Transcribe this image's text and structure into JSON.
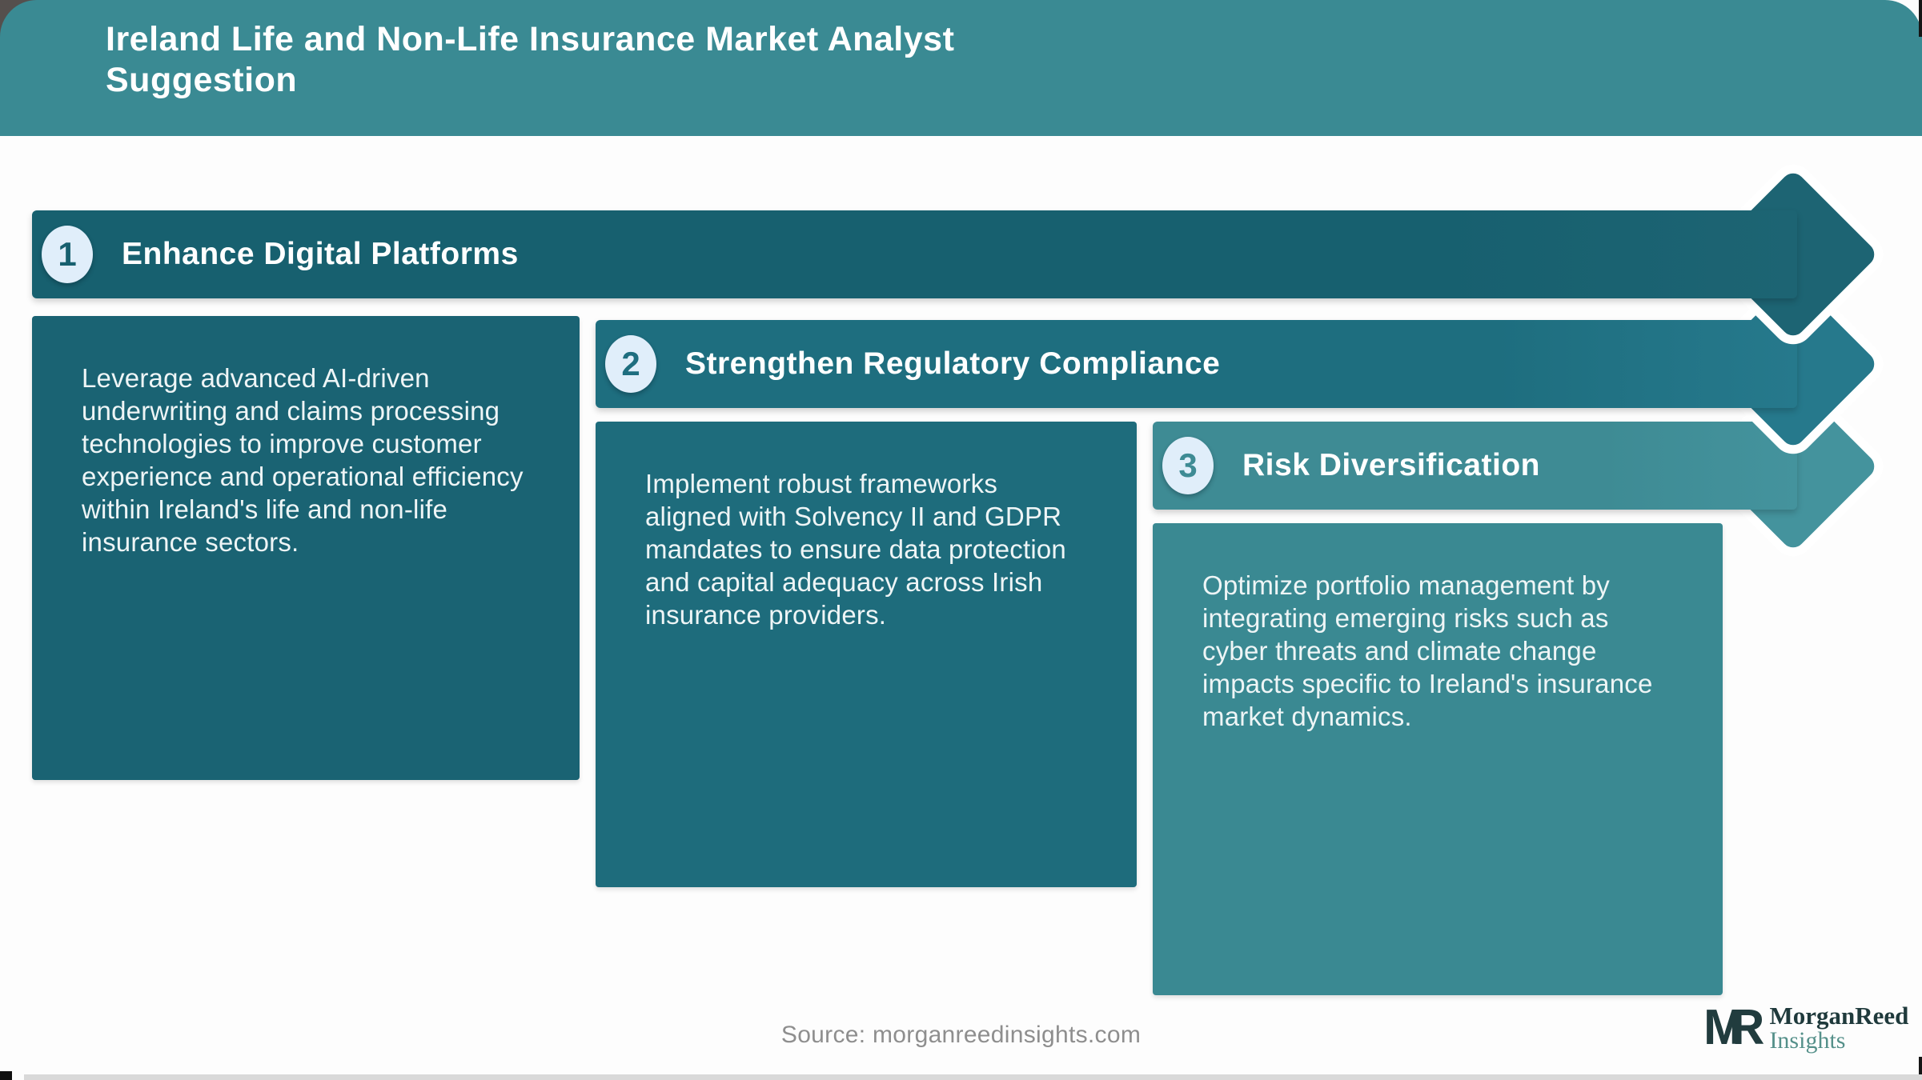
{
  "header": {
    "title": "Ireland Life and Non-Life Insurance Market Analyst Suggestion",
    "background_color": "#3a8a93",
    "title_color": "#ffffff"
  },
  "steps": [
    {
      "number": "1",
      "title": "Enhance Digital Platforms",
      "description": "Leverage advanced AI-driven underwriting and claims processing technologies to improve customer experience and operational efficiency within Ireland's life and non-life insurance sectors.",
      "bar_color": "#17606f",
      "arrow_color": "#1d6473",
      "box_color": "#1a6373",
      "badge_color": "#e0eefa"
    },
    {
      "number": "2",
      "title": "Strengthen Regulatory Compliance",
      "description": "Implement robust frameworks aligned with Solvency II and GDPR mandates to ensure data protection and capital adequacy across Irish insurance providers.",
      "bar_color": "#1e6e7f",
      "arrow_color": "#26798c",
      "box_color": "#1e6c7c",
      "badge_color": "#e0eefa"
    },
    {
      "number": "3",
      "title": "Risk Diversification",
      "description": "Optimize portfolio management by integrating emerging risks such as cyber threats and climate change impacts specific to Ireland's insurance market dynamics.",
      "bar_color": "#3e8b94",
      "arrow_color": "#44939d",
      "box_color": "#3a8992",
      "badge_color": "#e0eefa"
    }
  ],
  "footer": {
    "source": "Source: morganreedinsights.com",
    "logo": {
      "monogram_m": "M",
      "monogram_r": "R",
      "name": "MorganReed",
      "tagline": "Insights",
      "name_color": "#1f3a3c",
      "tagline_color": "#55908a"
    }
  }
}
